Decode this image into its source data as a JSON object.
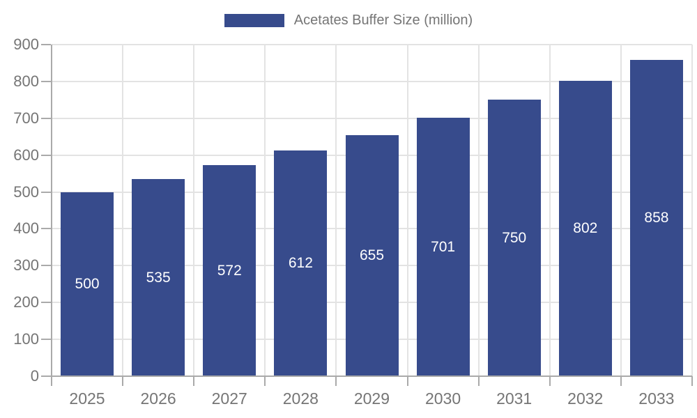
{
  "chart_data": {
    "type": "bar",
    "title": "",
    "legend": {
      "label": "Acetates Buffer Size (million)",
      "position": "top-center"
    },
    "categories": [
      "2025",
      "2026",
      "2027",
      "2028",
      "2029",
      "2030",
      "2031",
      "2032",
      "2033"
    ],
    "series": [
      {
        "name": "Acetates Buffer Size (million)",
        "values": [
          500,
          535,
          572,
          612,
          655,
          701,
          750,
          802,
          858
        ]
      }
    ],
    "xlabel": "",
    "ylabel": "",
    "ylim": [
      0,
      900
    ],
    "ytick_step": 100,
    "ytick_labels": [
      "0",
      "100",
      "200",
      "300",
      "400",
      "500",
      "600",
      "700",
      "800",
      "900"
    ],
    "grid": true,
    "bar_value_labels_inside": true,
    "colors": {
      "bar": "#374B8C",
      "grid": "#e3e3e3",
      "axis": "#aaaaaa",
      "tick_text": "#757575",
      "bar_label_text": "#ffffff",
      "legend_text": "#757575",
      "background": "#ffffff"
    }
  }
}
